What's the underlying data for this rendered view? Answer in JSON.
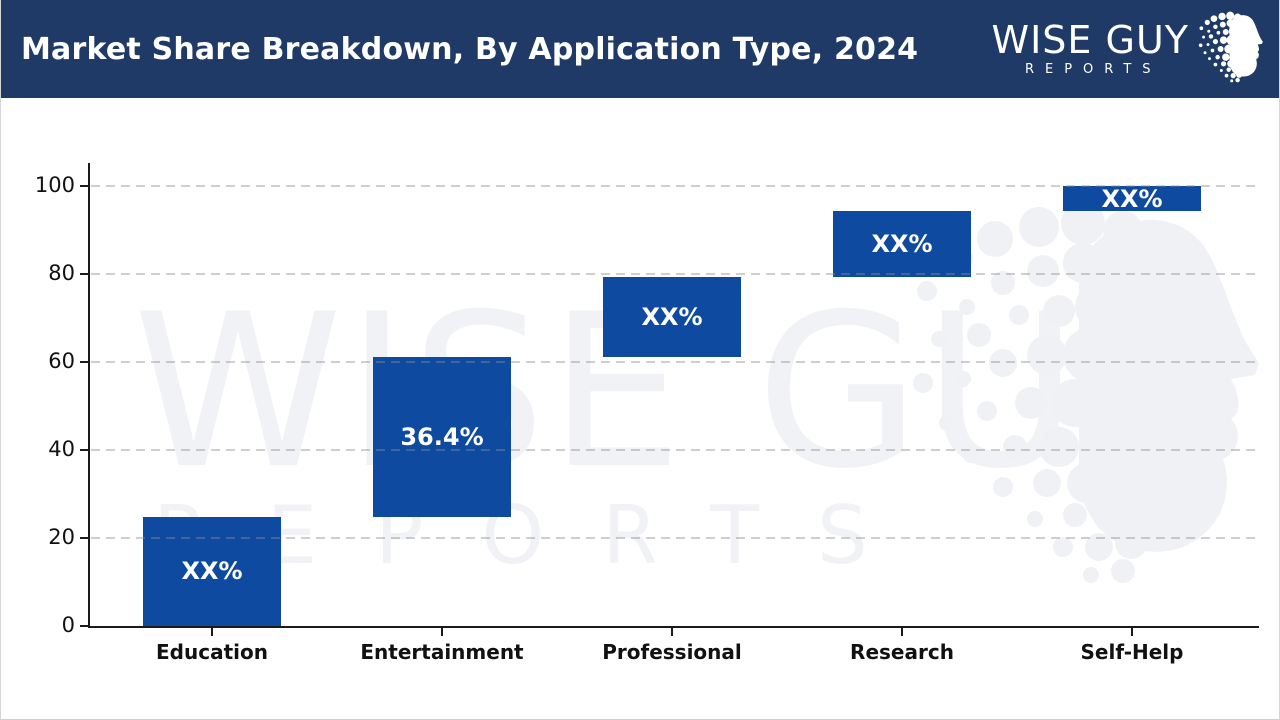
{
  "header": {
    "title": "Market Share Breakdown, By Application Type, 2024",
    "logo": {
      "line1": "WISE GUY",
      "line2": "REPORTS"
    }
  },
  "watermark": {
    "line1": "WISE GUY",
    "line2": "REPORTS"
  },
  "chart_data": {
    "type": "bar",
    "subtype": "waterfall",
    "title": "Market Share Breakdown, By Application Type, 2024",
    "categories": [
      "Education",
      "Entertainment",
      "Professional",
      "Research",
      "Self-Help"
    ],
    "segments": [
      {
        "category": "Education",
        "label": "XX%",
        "start": 0,
        "end": 24.8,
        "value": 24.8
      },
      {
        "category": "Entertainment",
        "label": "36.4%",
        "start": 24.8,
        "end": 61.2,
        "value": 36.4
      },
      {
        "category": "Professional",
        "label": "XX%",
        "start": 61.2,
        "end": 79.3,
        "value": 18.1
      },
      {
        "category": "Research",
        "label": "XX%",
        "start": 79.3,
        "end": 94.3,
        "value": 15.0
      },
      {
        "category": "Self-Help",
        "label": "XX%",
        "start": 94.3,
        "end": 100,
        "value": 5.7
      }
    ],
    "yticks": [
      0,
      20,
      40,
      60,
      80,
      100
    ],
    "ylim": [
      0,
      105
    ],
    "xlabel": "",
    "ylabel": "",
    "grid": "horizontal-dashed-over-bars",
    "legend": "none",
    "bar_color": "#0d4aa0",
    "bar_label_color": "#ffffff"
  },
  "colors": {
    "header_bg": "#1f3a66",
    "bar": "#0d4aa0",
    "grid": "rgba(140,140,140,0.42)",
    "axis": "#1a1a1a",
    "watermark": "#f1f2f5",
    "page_bg": "#ffffff"
  }
}
